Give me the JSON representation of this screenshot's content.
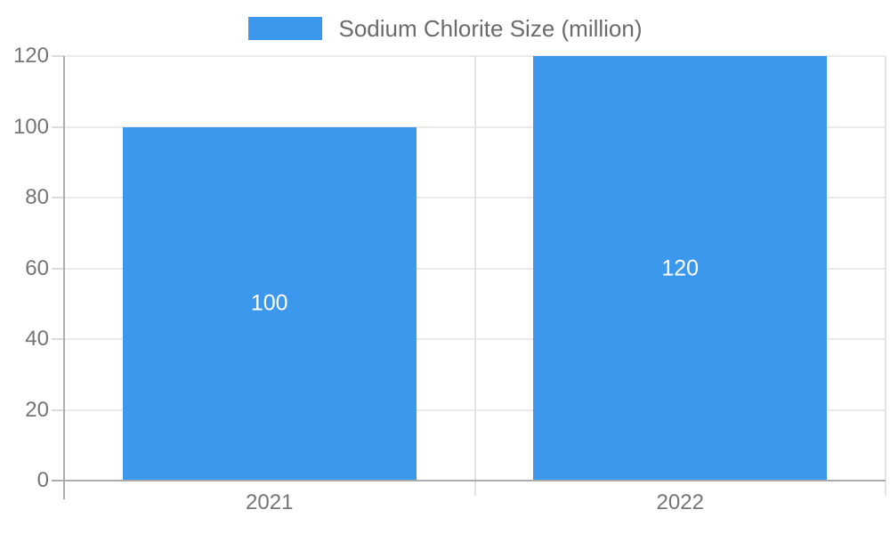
{
  "chart_data": {
    "type": "bar",
    "title": "",
    "legend": "Sodium Chlorite Size (million)",
    "legend_position": "top-center",
    "categories": [
      "2021",
      "2022"
    ],
    "series": [
      {
        "name": "Sodium Chlorite Size (million)",
        "values": [
          100,
          120
        ]
      }
    ],
    "bar_labels": [
      "100",
      "120"
    ],
    "ylim": [
      0,
      120
    ],
    "yticks": [
      0,
      20,
      40,
      60,
      80,
      100,
      120
    ],
    "grid": true,
    "bar_width_fraction": 0.715,
    "colors": {
      "bar": "#3B98EC",
      "bar_label": "#FFFFFF",
      "gridline": "#EAEAEA",
      "boundary_line": "#E4E4E4",
      "tick_mark": "#DBDBDB",
      "axis_line": "#ACACAC",
      "tick_label": "#757575",
      "legend_text": "#6B6B6B",
      "background": "#FFFFFF"
    }
  }
}
